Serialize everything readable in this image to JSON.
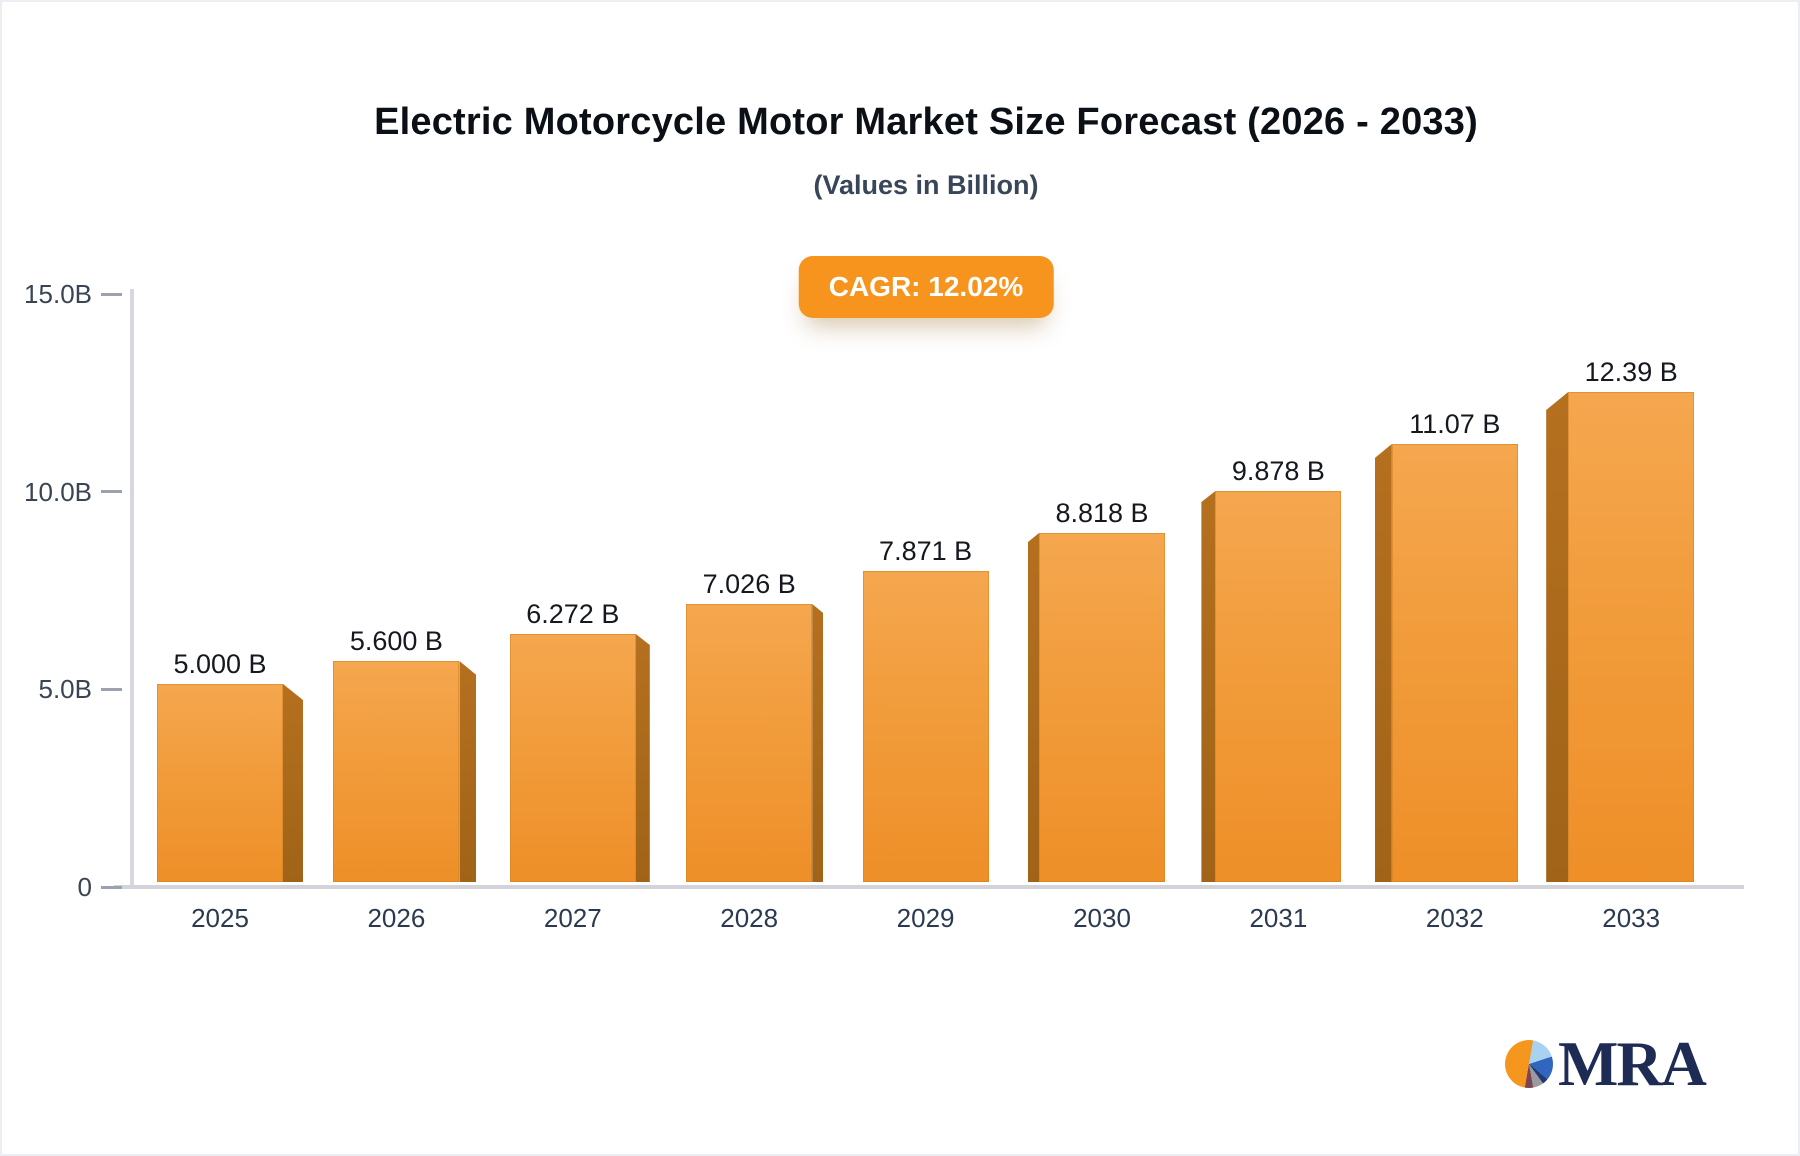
{
  "title": "Electric Motorcycle Motor Market Size Forecast (2026 - 2033)",
  "subtitle": "(Values in Billion)",
  "badge": {
    "label": "CAGR: 12.02%"
  },
  "logo": {
    "text": "MRA",
    "pie_icon": "pie-chart-icon",
    "colors": {
      "orange": "#f5961f",
      "light_blue": "#a9d2f0",
      "blue": "#3166be",
      "navy": "#23386e",
      "gray": "#9a9aa2",
      "maroon": "#7c4450",
      "text_navy": "#1d2b55"
    }
  },
  "chart_data": {
    "type": "bar",
    "title": "Electric Motorcycle Motor Market Size Forecast (2026 - 2033)",
    "subtitle": "(Values in Billion)",
    "categories": [
      "2025",
      "2026",
      "2027",
      "2028",
      "2029",
      "2030",
      "2031",
      "2032",
      "2033"
    ],
    "values": [
      5.0,
      5.6,
      6.272,
      7.026,
      7.871,
      8.818,
      9.878,
      11.07,
      12.39
    ],
    "value_labels": [
      "5.000 B",
      "5.600 B",
      "6.272 B",
      "7.026 B",
      "7.871 B",
      "8.818 B",
      "9.878 B",
      "11.07 B",
      "12.39 B"
    ],
    "xlabel": "",
    "ylabel": "",
    "ylim": [
      0,
      15
    ],
    "yticks": [
      {
        "label": "15.0B",
        "value": 15
      },
      {
        "label": "10.0B",
        "value": 10
      },
      {
        "label": "5.0B",
        "value": 5
      },
      {
        "label": "0",
        "value": 0
      }
    ],
    "grid": false,
    "legend": false,
    "annotations": [
      "CAGR: 12.02%"
    ],
    "bar_style": {
      "effect": "3d-prism",
      "face_top": "#f5a74f",
      "face_bottom": "#ee8f28",
      "side": "#ac6a1c"
    }
  }
}
